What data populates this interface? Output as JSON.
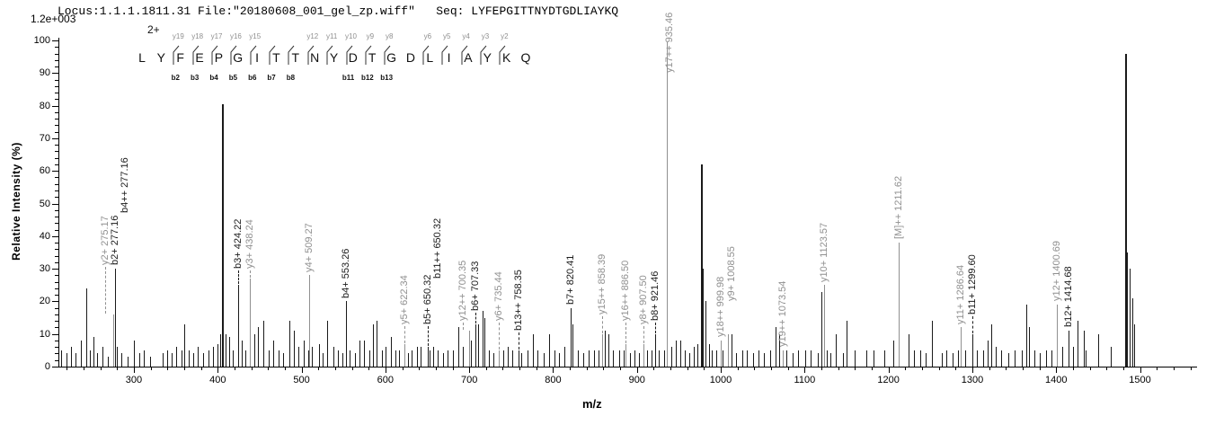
{
  "header": {
    "text": "Locus:1.1.1.1811.31 File:\"20180608_001_gel_zp.wiff\"   Seq: LYFEPGITTNYDTGDLIAYKQ"
  },
  "scale_label": "1.2e+003",
  "axes": {
    "y_title": "Relative  Intensity (%)",
    "x_title": "m/z",
    "x_ticks": [
      300,
      400,
      500,
      600,
      700,
      800,
      900,
      1000,
      1100,
      1200,
      1300,
      1400,
      1500
    ],
    "y_ticks": [
      0,
      10,
      20,
      30,
      40,
      50,
      60,
      70,
      80,
      90,
      100
    ],
    "x_minor_step": 20,
    "y_minor_step": 2,
    "x_min": 210,
    "x_max": 1568
  },
  "colors": {
    "b_ion": "#1a1a1a",
    "y_ion": "#909090",
    "axis": "#000000"
  },
  "chart_data": {
    "type": "bar",
    "xlabel": "m/z",
    "ylabel": "Relative Intensity (%)",
    "x_range": [
      210,
      1568
    ],
    "y_range": [
      0,
      100
    ],
    "base_peak_intensity": "1.2e+003",
    "legend": "black = b ions, gray = y ions",
    "labeled_peaks": [
      {
        "ion": "y2+",
        "mz": 275.17,
        "intensity_pct": 16,
        "color": "y",
        "label": "y2+ 275.17",
        "dx": -9,
        "label_pct": 31
      },
      {
        "ion": "b2+",
        "mz": 277.16,
        "intensity_pct": 30,
        "color": "b",
        "label": "b2+ 277.16",
        "dx": 0,
        "label_pct": 31
      },
      {
        "ion": "b4++",
        "mz": 277.16,
        "intensity_pct": 30,
        "color": "b",
        "label": "b4++ 277.16",
        "dx": 11,
        "label_pct": 47,
        "noleader": true
      },
      {
        "ion": "b3+",
        "mz": 424.22,
        "intensity_pct": 25,
        "color": "b",
        "label": "b3+ 424.22",
        "dx": 0,
        "label_pct": 30
      },
      {
        "ion": "y3+",
        "mz": 438.24,
        "intensity_pct": 27,
        "color": "y",
        "label": "y3+ 438.24",
        "dx": 0,
        "label_pct": 30
      },
      {
        "ion": "y4+",
        "mz": 509.27,
        "intensity_pct": 28,
        "color": "y",
        "label": "y4+ 509.27",
        "dx": 0,
        "label_pct": 29
      },
      {
        "ion": "b4+",
        "mz": 553.26,
        "intensity_pct": 20,
        "color": "b",
        "label": "b4+ 553.26",
        "dx": 0,
        "label_pct": 21
      },
      {
        "ion": "y5+",
        "mz": 622.34,
        "intensity_pct": 7,
        "color": "y",
        "label": "y5+ 622.34",
        "dx": 0,
        "label_pct": 13
      },
      {
        "ion": "b5+",
        "mz": 650.32,
        "intensity_pct": 6,
        "color": "b",
        "label": "b5+ 650.32",
        "dx": 0,
        "label_pct": 13
      },
      {
        "ion": "b11++",
        "mz": 650.32,
        "intensity_pct": 6,
        "color": "b",
        "label": "b11++ 650.32",
        "dx": 11,
        "label_pct": 27,
        "noleader": true
      },
      {
        "ion": "y12++",
        "mz": 700.35,
        "intensity_pct": 11,
        "color": "y",
        "label": "y12++ 700.35",
        "dx": -7,
        "label_pct": 14
      },
      {
        "ion": "b6+",
        "mz": 707.33,
        "intensity_pct": 13,
        "color": "b",
        "label": "b6+ 707.33",
        "dx": 0,
        "label_pct": 17
      },
      {
        "ion": "y6+",
        "mz": 735.44,
        "intensity_pct": 5,
        "color": "y",
        "label": "y6+ 735.44",
        "dx": 0,
        "label_pct": 14
      },
      {
        "ion": "b13++",
        "mz": 758.35,
        "intensity_pct": 5,
        "color": "b",
        "label": "b13++ 758.35",
        "dx": 0,
        "label_pct": 11
      },
      {
        "ion": "b7+",
        "mz": 820.41,
        "intensity_pct": 18,
        "color": "b",
        "label": "b7+ 820.41",
        "dx": 0,
        "label_pct": 19
      },
      {
        "ion": "y15++",
        "mz": 858.39,
        "intensity_pct": 10,
        "color": "y",
        "label": "y15++ 858.39",
        "dx": 0,
        "label_pct": 16
      },
      {
        "ion": "y16++",
        "mz": 886.5,
        "intensity_pct": 7,
        "color": "y",
        "label": "y16++ 886.50",
        "dx": 0,
        "label_pct": 14
      },
      {
        "ion": "y8+",
        "mz": 907.5,
        "intensity_pct": 7,
        "color": "y",
        "label": "y8+ 907.50",
        "dx": 0,
        "label_pct": 13
      },
      {
        "ion": "b8+",
        "mz": 921.46,
        "intensity_pct": 10,
        "color": "b",
        "label": "b8+ 921.46",
        "dx": 0,
        "label_pct": 14
      },
      {
        "ion": "y17++",
        "mz": 935.46,
        "intensity_pct": 99.5,
        "color": "y",
        "label": "y17++ 935.46",
        "dx": 3,
        "label_pct": 90,
        "noleader": true
      },
      {
        "ion": "y18++",
        "mz": 999.98,
        "intensity_pct": 8,
        "color": "y",
        "label": "y18++ 999.98",
        "dx": 0,
        "label_pct": 9
      },
      {
        "ion": "y9+",
        "mz": 1008.55,
        "intensity_pct": 10,
        "color": "y",
        "label": "y9+ 1008.55",
        "dx": 4,
        "label_pct": 20,
        "noleader": true
      },
      {
        "ion": "y19++",
        "mz": 1073.54,
        "intensity_pct": 5,
        "color": "y",
        "label": "y19++ 1073.54",
        "dx": 0,
        "label_pct": 6
      },
      {
        "ion": "y10+",
        "mz": 1123.57,
        "intensity_pct": 25,
        "color": "y",
        "label": "y10+ 1123.57",
        "dx": 0,
        "label_pct": 26
      },
      {
        "ion": "[M]++",
        "mz": 1211.62,
        "intensity_pct": 38,
        "color": "y",
        "label": "[M]++ 1211.62",
        "dx": 0,
        "label_pct": 39
      },
      {
        "ion": "y11+",
        "mz": 1286.64,
        "intensity_pct": 12,
        "color": "y",
        "label": "y11+ 1286.64",
        "dx": 0,
        "label_pct": 13
      },
      {
        "ion": "b11+",
        "mz": 1299.6,
        "intensity_pct": 10,
        "color": "b",
        "label": "b11+ 1299.60",
        "dx": 0,
        "label_pct": 16
      },
      {
        "ion": "y12+",
        "mz": 1400.69,
        "intensity_pct": 19,
        "color": "y",
        "label": "y12+ 1400.69",
        "dx": 0,
        "label_pct": 20
      },
      {
        "ion": "b12+",
        "mz": 1414.68,
        "intensity_pct": 11,
        "color": "b",
        "label": "b12+ 1414.68",
        "dx": 0,
        "label_pct": 12
      }
    ],
    "noise_peaks": [
      [
        214,
        5
      ],
      [
        220,
        4
      ],
      [
        226,
        6
      ],
      [
        231,
        4
      ],
      [
        237,
        8
      ],
      [
        244,
        24
      ],
      [
        248,
        5
      ],
      [
        252,
        9
      ],
      [
        257,
        4
      ],
      [
        263,
        6
      ],
      [
        270,
        3
      ],
      [
        280,
        6
      ],
      [
        286,
        4
      ],
      [
        293,
        3
      ],
      [
        301,
        8
      ],
      [
        307,
        4
      ],
      [
        312,
        5
      ],
      [
        320,
        3
      ],
      [
        335,
        4
      ],
      [
        340,
        5
      ],
      [
        346,
        4
      ],
      [
        351,
        6
      ],
      [
        357,
        5
      ],
      [
        361,
        13
      ],
      [
        366,
        5
      ],
      [
        371,
        4
      ],
      [
        377,
        6
      ],
      [
        383,
        4
      ],
      [
        389,
        5
      ],
      [
        395,
        6
      ],
      [
        400,
        7
      ],
      [
        403,
        10
      ],
      [
        406,
        80.5
      ],
      [
        410,
        10
      ],
      [
        414,
        9
      ],
      [
        419,
        5
      ],
      [
        429,
        8
      ],
      [
        434,
        5
      ],
      [
        444,
        10
      ],
      [
        449,
        12
      ],
      [
        455,
        14
      ],
      [
        461,
        5
      ],
      [
        467,
        8
      ],
      [
        473,
        5
      ],
      [
        479,
        4
      ],
      [
        486,
        14
      ],
      [
        491,
        11
      ],
      [
        497,
        6
      ],
      [
        503,
        8
      ],
      [
        508,
        5
      ],
      [
        513,
        6
      ],
      [
        521,
        7
      ],
      [
        526,
        4
      ],
      [
        531,
        14
      ],
      [
        538,
        6
      ],
      [
        544,
        5
      ],
      [
        549,
        4
      ],
      [
        558,
        5
      ],
      [
        564,
        4
      ],
      [
        570,
        8
      ],
      [
        575,
        8
      ],
      [
        581,
        5
      ],
      [
        586,
        13
      ],
      [
        590,
        14
      ],
      [
        596,
        5
      ],
      [
        601,
        6
      ],
      [
        607,
        9
      ],
      [
        612,
        5
      ],
      [
        617,
        5
      ],
      [
        627,
        4
      ],
      [
        632,
        5
      ],
      [
        638,
        6
      ],
      [
        643,
        6
      ],
      [
        653,
        5
      ],
      [
        658,
        6
      ],
      [
        663,
        5
      ],
      [
        669,
        4
      ],
      [
        675,
        5
      ],
      [
        681,
        5
      ],
      [
        687,
        12
      ],
      [
        693,
        6
      ],
      [
        702,
        8
      ],
      [
        711,
        13
      ],
      [
        716,
        17
      ],
      [
        719,
        15
      ],
      [
        724,
        5
      ],
      [
        729,
        4
      ],
      [
        741,
        5
      ],
      [
        746,
        6
      ],
      [
        752,
        5
      ],
      [
        763,
        4
      ],
      [
        770,
        5
      ],
      [
        776,
        10
      ],
      [
        782,
        5
      ],
      [
        789,
        4
      ],
      [
        796,
        10
      ],
      [
        802,
        5
      ],
      [
        808,
        4
      ],
      [
        814,
        6
      ],
      [
        824,
        13
      ],
      [
        830,
        5
      ],
      [
        837,
        4
      ],
      [
        843,
        5
      ],
      [
        849,
        5
      ],
      [
        855,
        5
      ],
      [
        862,
        11
      ],
      [
        866,
        10
      ],
      [
        872,
        5
      ],
      [
        879,
        5
      ],
      [
        885,
        5
      ],
      [
        892,
        4
      ],
      [
        898,
        5
      ],
      [
        903,
        4
      ],
      [
        913,
        5
      ],
      [
        918,
        5
      ],
      [
        927,
        5
      ],
      [
        933,
        5
      ],
      [
        941,
        6
      ],
      [
        947,
        8
      ],
      [
        952,
        8
      ],
      [
        958,
        5
      ],
      [
        963,
        4
      ],
      [
        968,
        6
      ],
      [
        973,
        7
      ],
      [
        977.8,
        62
      ],
      [
        979.3,
        30
      ],
      [
        982,
        20
      ],
      [
        986,
        7
      ],
      [
        990,
        5
      ],
      [
        995,
        5
      ],
      [
        1003,
        5
      ],
      [
        1013,
        10
      ],
      [
        1019,
        4
      ],
      [
        1026,
        5
      ],
      [
        1032,
        5
      ],
      [
        1039,
        4
      ],
      [
        1046,
        5
      ],
      [
        1052,
        4
      ],
      [
        1059,
        5
      ],
      [
        1066,
        12
      ],
      [
        1070,
        10
      ],
      [
        1079,
        5
      ],
      [
        1086,
        4
      ],
      [
        1093,
        5
      ],
      [
        1101,
        5
      ],
      [
        1108,
        5
      ],
      [
        1116,
        4
      ],
      [
        1120,
        23
      ],
      [
        1127,
        5
      ],
      [
        1131,
        4
      ],
      [
        1138,
        10
      ],
      [
        1146,
        4
      ],
      [
        1151,
        14
      ],
      [
        1160,
        5
      ],
      [
        1174,
        5
      ],
      [
        1183,
        5
      ],
      [
        1196,
        5
      ],
      [
        1206,
        8
      ],
      [
        1224,
        10
      ],
      [
        1231,
        5
      ],
      [
        1238,
        5
      ],
      [
        1245,
        4
      ],
      [
        1252,
        14
      ],
      [
        1264,
        4
      ],
      [
        1270,
        5
      ],
      [
        1277,
        4
      ],
      [
        1283,
        5
      ],
      [
        1292,
        5
      ],
      [
        1306,
        5
      ],
      [
        1313,
        5
      ],
      [
        1319,
        8
      ],
      [
        1323,
        13
      ],
      [
        1328,
        6
      ],
      [
        1335,
        5
      ],
      [
        1343,
        4
      ],
      [
        1351,
        5
      ],
      [
        1359,
        5
      ],
      [
        1365,
        19
      ],
      [
        1368,
        12
      ],
      [
        1374,
        5
      ],
      [
        1381,
        4
      ],
      [
        1389,
        5
      ],
      [
        1395,
        5
      ],
      [
        1408,
        6
      ],
      [
        1421,
        6
      ],
      [
        1426,
        14
      ],
      [
        1433,
        11
      ],
      [
        1436,
        5
      ],
      [
        1451,
        10
      ],
      [
        1466,
        6
      ],
      [
        1483,
        96
      ],
      [
        1485,
        35
      ],
      [
        1488,
        30
      ],
      [
        1491,
        21
      ],
      [
        1494,
        13
      ]
    ],
    "sequence_annotation": {
      "charge_label": "2+",
      "residues": [
        "L",
        "Y",
        "F",
        "E",
        "P",
        "G",
        "I",
        "T",
        "T",
        "N",
        "Y",
        "D",
        "T",
        "G",
        "D",
        "L",
        "I",
        "A",
        "Y",
        "K",
        "Q"
      ],
      "cleavages": [
        {
          "after": 2,
          "y": "y19",
          "b": "b2"
        },
        {
          "after": 3,
          "y": "y18",
          "b": "b3"
        },
        {
          "after": 4,
          "y": "y17",
          "b": "b4"
        },
        {
          "after": 5,
          "y": "y16",
          "b": "b5"
        },
        {
          "after": 6,
          "y": "y15",
          "b": "b6"
        },
        {
          "after": 7,
          "y": null,
          "b": "b7"
        },
        {
          "after": 8,
          "y": null,
          "b": "b8"
        },
        {
          "after": 9,
          "y": "y12",
          "b": null
        },
        {
          "after": 10,
          "y": "y11",
          "b": null
        },
        {
          "after": 11,
          "y": "y10",
          "b": "b11"
        },
        {
          "after": 12,
          "y": "y9",
          "b": "b12"
        },
        {
          "after": 13,
          "y": "y8",
          "b": "b13"
        },
        {
          "after": 15,
          "y": "y6",
          "b": null
        },
        {
          "after": 16,
          "y": "y5",
          "b": null
        },
        {
          "after": 17,
          "y": "y4",
          "b": null
        },
        {
          "after": 18,
          "y": "y3",
          "b": null
        },
        {
          "after": 19,
          "y": "y2",
          "b": null
        }
      ]
    }
  }
}
